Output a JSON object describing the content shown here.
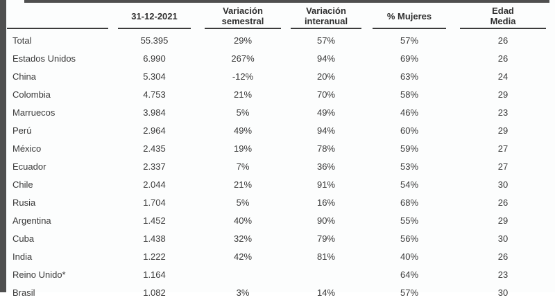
{
  "colors": {
    "background": "#fcfdfd",
    "text": "#383838",
    "header_text": "#2f2f2f",
    "rule": "#3b3b3b",
    "edge_bar": "#4f4f4f"
  },
  "table": {
    "headers": [
      "",
      "31-12-2021",
      "Variación\nsemestral",
      "Variación\ninteranual",
      "% Mujeres",
      "Edad\nMedia"
    ],
    "rows": [
      {
        "label": "Total",
        "values": [
          "55.395",
          "29%",
          "57%",
          "57%",
          "26"
        ]
      },
      {
        "label": "Estados Unidos",
        "values": [
          "6.990",
          "267%",
          "94%",
          "69%",
          "26"
        ]
      },
      {
        "label": "China",
        "values": [
          "5.304",
          "-12%",
          "20%",
          "63%",
          "24"
        ]
      },
      {
        "label": "Colombia",
        "values": [
          "4.753",
          "21%",
          "70%",
          "58%",
          "29"
        ]
      },
      {
        "label": "Marruecos",
        "values": [
          "3.984",
          "5%",
          "49%",
          "46%",
          "23"
        ]
      },
      {
        "label": "Perú",
        "values": [
          "2.964",
          "49%",
          "94%",
          "60%",
          "29"
        ]
      },
      {
        "label": "México",
        "values": [
          "2.435",
          "19%",
          "78%",
          "59%",
          "27"
        ]
      },
      {
        "label": "Ecuador",
        "values": [
          "2.337",
          "7%",
          "36%",
          "53%",
          "27"
        ]
      },
      {
        "label": "Chile",
        "values": [
          "2.044",
          "21%",
          "91%",
          "54%",
          "30"
        ]
      },
      {
        "label": "Rusia",
        "values": [
          "1.704",
          "5%",
          "16%",
          "68%",
          "26"
        ]
      },
      {
        "label": "Argentina",
        "values": [
          "1.452",
          "40%",
          "90%",
          "55%",
          "29"
        ]
      },
      {
        "label": "Cuba",
        "values": [
          "1.438",
          "32%",
          "79%",
          "56%",
          "30"
        ]
      },
      {
        "label": "India",
        "values": [
          "1.222",
          "42%",
          "81%",
          "40%",
          "26"
        ]
      },
      {
        "label": "Reino Unido*",
        "values": [
          "1.164",
          "",
          "",
          "64%",
          "23"
        ]
      },
      {
        "label": "Brasil",
        "values": [
          "1.082",
          "3%",
          "14%",
          "57%",
          "30"
        ]
      }
    ]
  }
}
